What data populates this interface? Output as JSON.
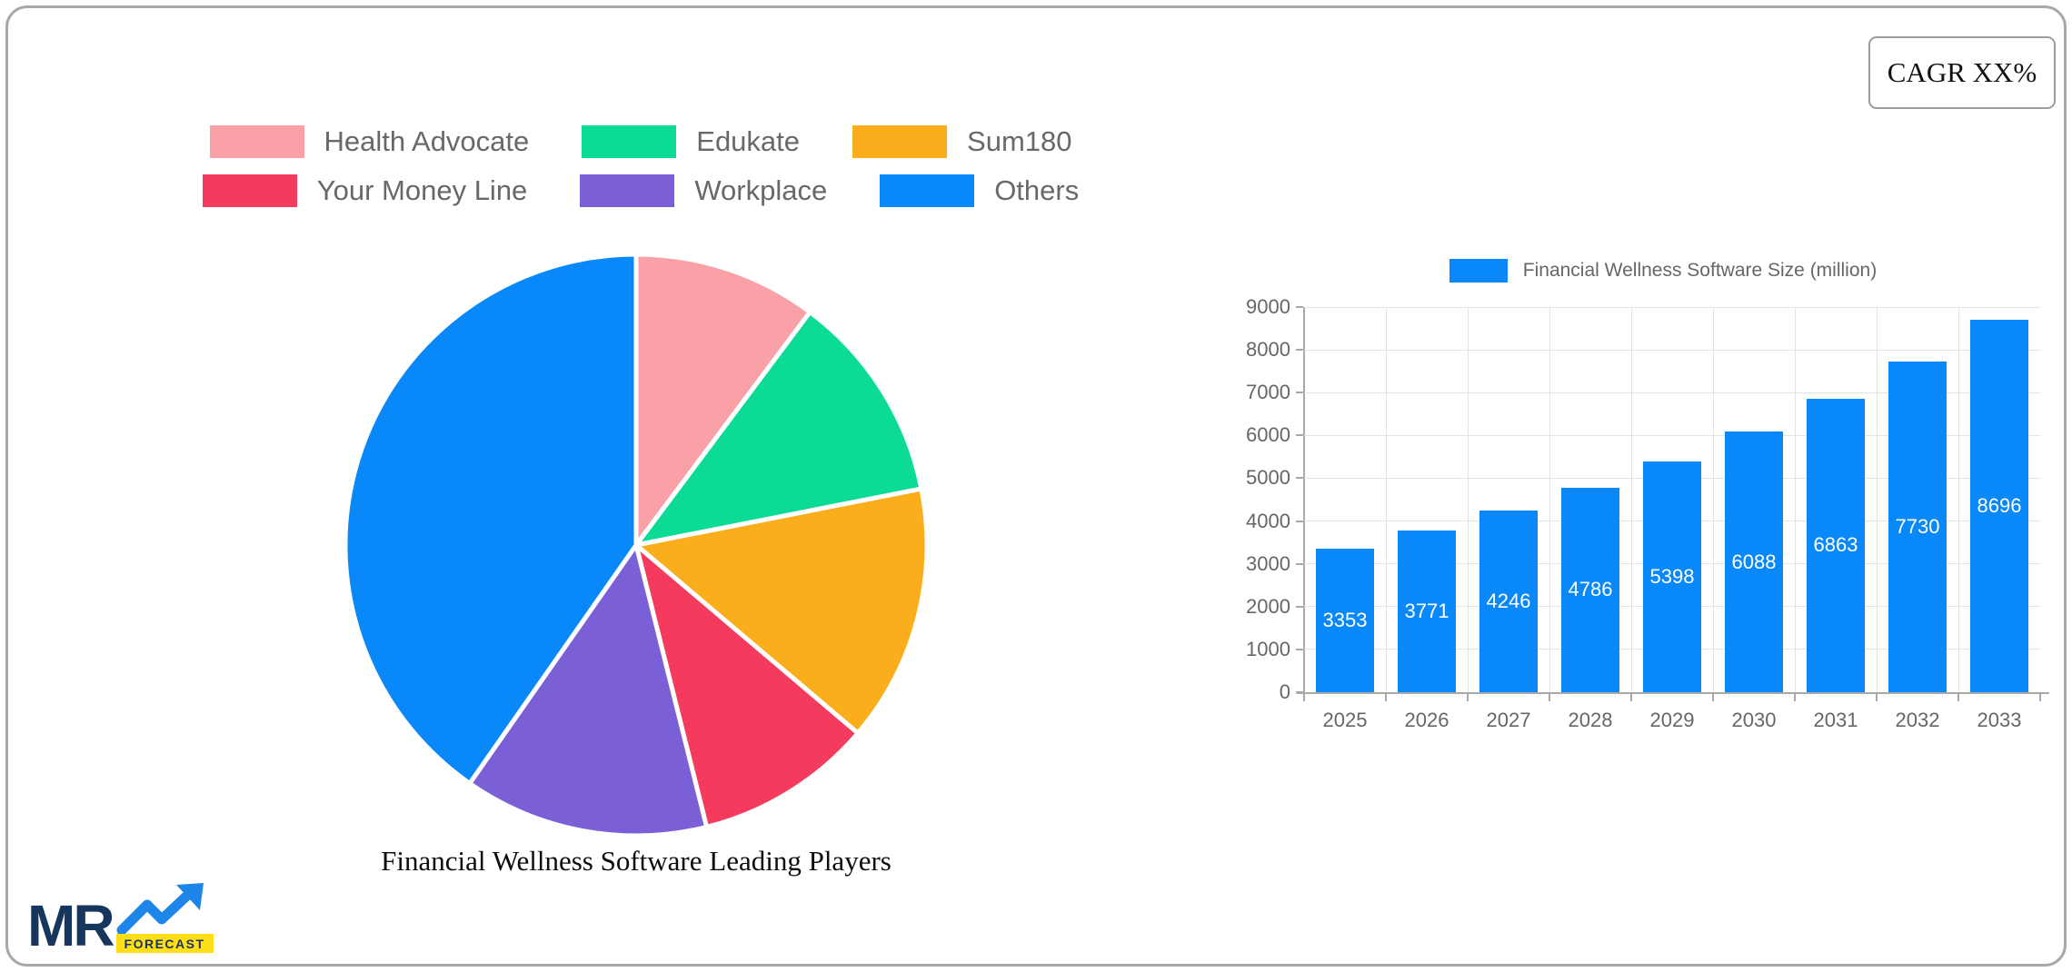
{
  "cagr_badge": {
    "label": "CAGR XX%"
  },
  "chart_data": [
    {
      "type": "pie",
      "title": "Financial Wellness Software Leading Players",
      "labels": [
        "Health Advocate",
        "Edukate",
        "Sum180",
        "Your Money Line",
        "Workplace",
        "Others"
      ],
      "values": [
        10.2,
        11.7,
        14.3,
        9.9,
        13.6,
        40.3
      ],
      "colors": [
        "#F9A1A7",
        "#0BDB95",
        "#FAAE1C",
        "#F43B5E",
        "#7A5FD7",
        "#0989F9"
      ],
      "legend_rows": [
        [
          "Health Advocate",
          "Edukate",
          "Sum180"
        ],
        [
          "Your Money Line",
          "Workplace",
          "Others"
        ]
      ],
      "legend_position": "top",
      "start_angle_deg": 0,
      "direction": "clockwise",
      "slice_border_color": "#ffffff"
    },
    {
      "type": "bar",
      "title": "Financial Wellness Software Size (million)",
      "categories": [
        "2025",
        "2026",
        "2027",
        "2028",
        "2029",
        "2030",
        "2031",
        "2032",
        "2033"
      ],
      "values": [
        3353,
        3771,
        4246,
        4786,
        5398,
        6088,
        6863,
        7730,
        8696
      ],
      "bar_color": "#0989F9",
      "value_label_color": "#ffffff",
      "ylim": [
        0,
        9000
      ],
      "ytick_step": 1000,
      "grid": true,
      "legend_position": "top"
    }
  ],
  "logo": {
    "mr": "MR",
    "forecast": "FORECAST",
    "navy": "#17365d",
    "arrow_blue": "#1d86e8",
    "yellow": "#ffde17"
  }
}
